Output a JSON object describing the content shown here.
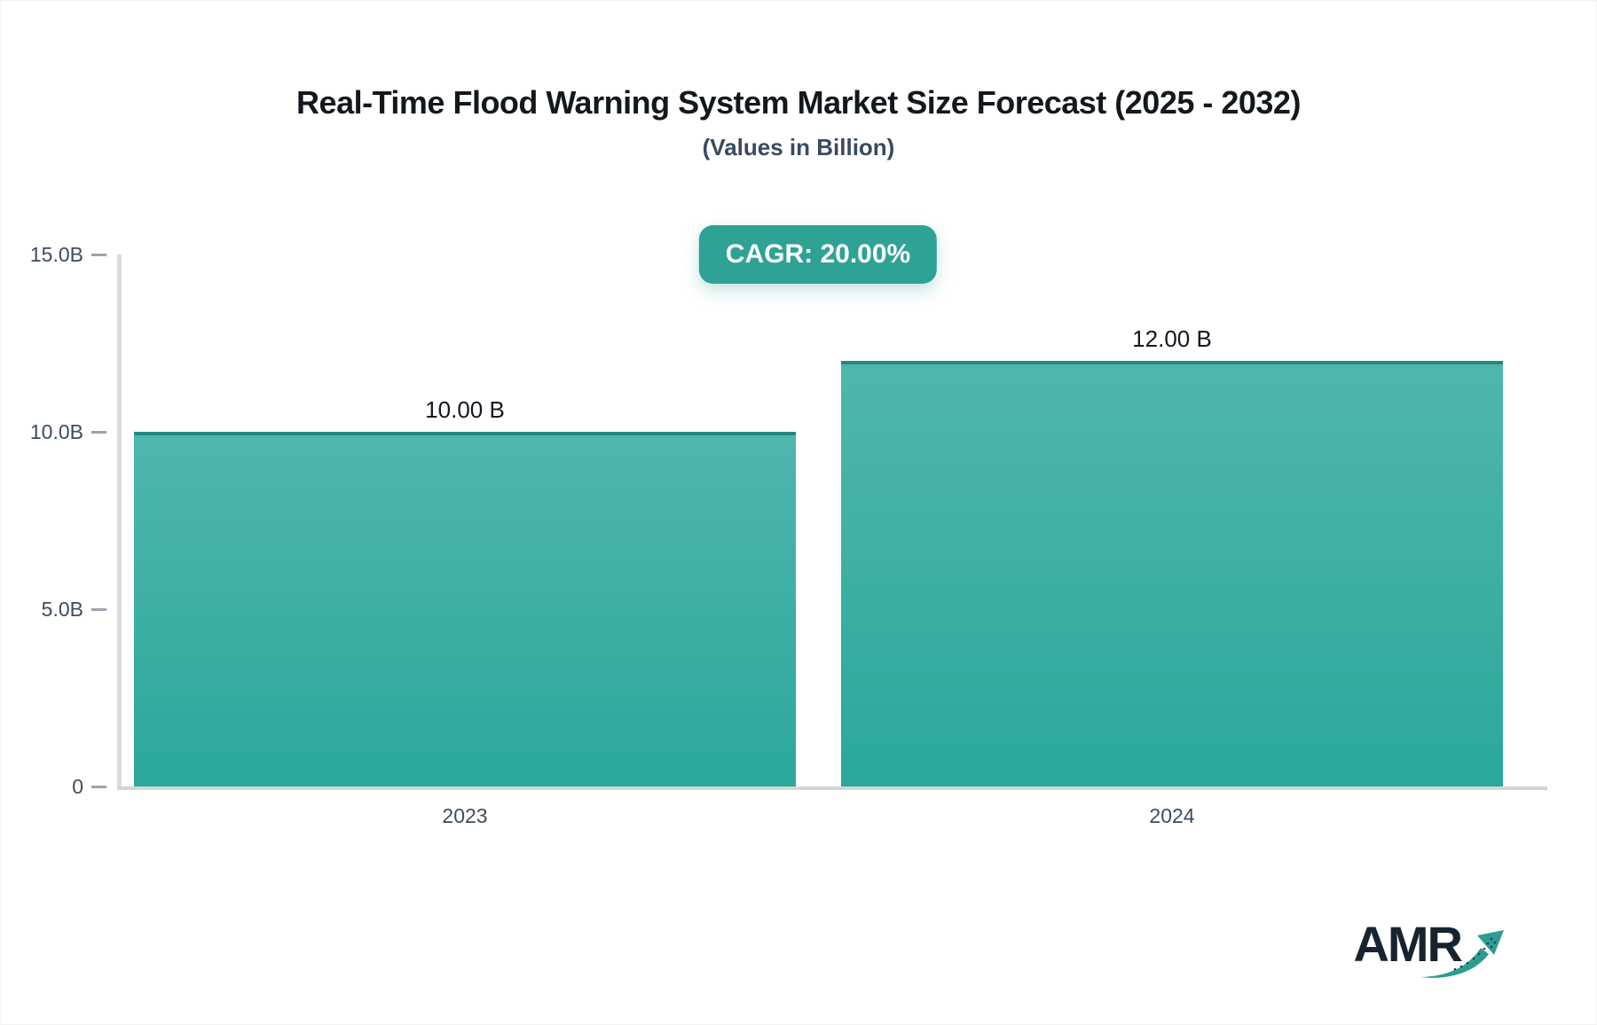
{
  "header": {
    "title": "Real-Time Flood Warning System Market Size Forecast (2025 - 2032)",
    "subtitle": "(Values in Billion)",
    "cagr_badge": "CAGR: 20.00%"
  },
  "chart_data": {
    "type": "bar",
    "title": "Real-Time Flood Warning System Market Size Forecast (2025 - 2032)",
    "subtitle": "(Values in Billion)",
    "unit": "Billion",
    "cagr_percent": 20.0,
    "categories": [
      "2023",
      "2024"
    ],
    "values": [
      10.0,
      12.0
    ],
    "value_labels": [
      "10.00 B",
      "12.00 B"
    ],
    "xlabel": "",
    "ylabel": "",
    "ylim": [
      0,
      15
    ],
    "yticks": [
      {
        "value": 15,
        "label": "15.0B"
      },
      {
        "value": 10,
        "label": "10.0B"
      },
      {
        "value": 5,
        "label": "5.0B"
      },
      {
        "value": 0,
        "label": "0"
      }
    ],
    "grid": false,
    "legend": "none"
  },
  "logo": {
    "text": "AMR",
    "icon": "trend-up-arrow-icon"
  },
  "colors": {
    "bar_gradient_top": "#4fb6ac",
    "bar_gradient_bottom": "#2aa89a",
    "bar_top_border": "#23897e",
    "badge_background": "#2fa296",
    "badge_text": "#ffffff",
    "axis_line": "#d9dbe0",
    "tick_dash": "#9ba4ae",
    "axis_label": "#3e4c5e",
    "title_text": "#13181d",
    "subtitle_text": "#3a4a60",
    "value_label_text": "#101820",
    "logo_text": "#172430",
    "logo_arrow": "#2f9c8f",
    "background": "#ffffff"
  }
}
